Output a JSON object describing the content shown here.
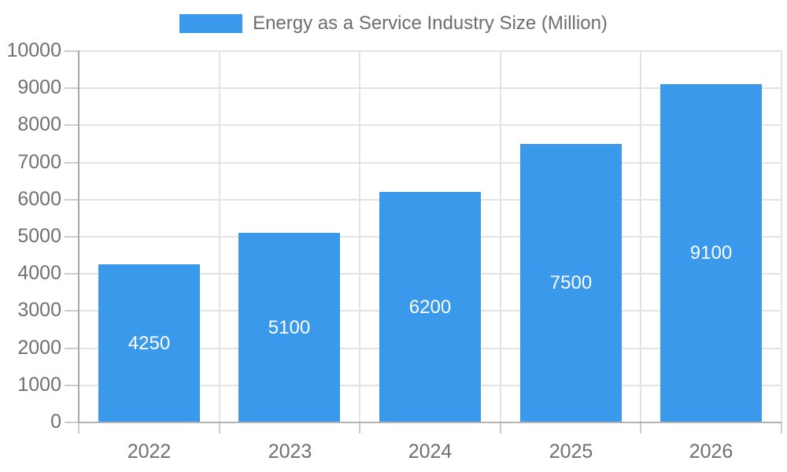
{
  "chart_data": {
    "type": "bar",
    "title": "Energy as a Service Industry Size (Million)",
    "legend": {
      "position": "top",
      "label": "Energy as a Service Industry Size (Million)"
    },
    "categories": [
      "2022",
      "2023",
      "2024",
      "2025",
      "2026"
    ],
    "series": [
      {
        "name": "Energy as a Service Industry Size (Million)",
        "values": [
          4250,
          5100,
          6200,
          7500,
          9100
        ]
      }
    ],
    "values": [
      4250,
      5100,
      6200,
      7500,
      9100
    ],
    "value_labels": [
      "4250",
      "5100",
      "6200",
      "7500",
      "9100"
    ],
    "xlabel": "",
    "ylabel": "",
    "ylim": [
      0,
      10000
    ],
    "ytick_step": 1000,
    "ytick_labels": [
      "0",
      "1000",
      "2000",
      "3000",
      "4000",
      "5000",
      "6000",
      "7000",
      "8000",
      "9000",
      "10000"
    ],
    "grid": true,
    "bar_label_position": "inside-center",
    "colors": {
      "bar": "#3b99ec",
      "grid": "#e3e3e3",
      "y_axis_line": "#a8a8a8",
      "x_axis_line": "#b3b3b3",
      "tick": "#cccccc",
      "tick_label": "#707070",
      "legend_text": "#6e6e6e",
      "value_label": "#ffffff",
      "background": "#ffffff"
    }
  }
}
